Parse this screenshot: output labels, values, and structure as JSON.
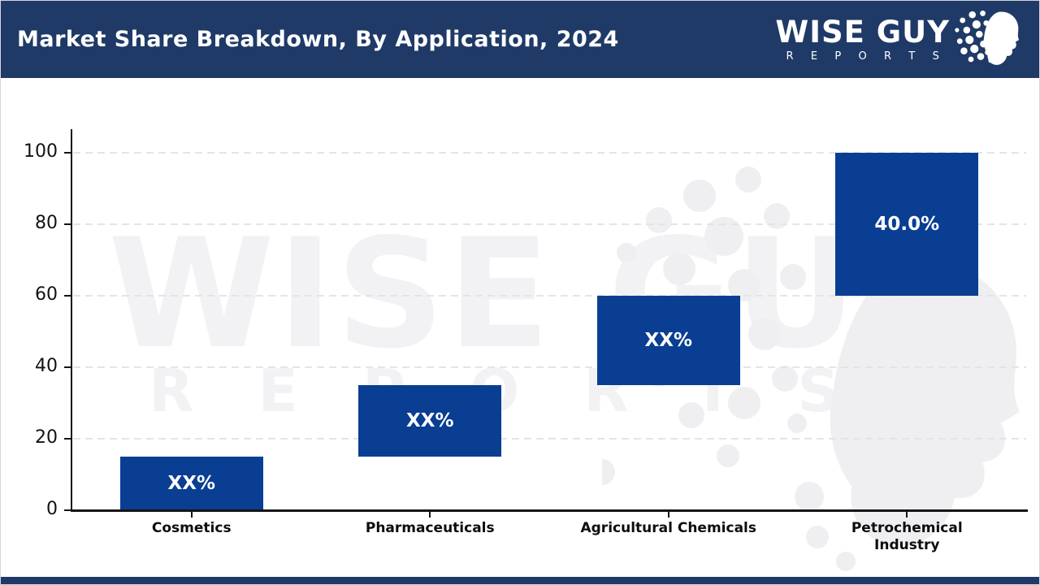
{
  "header": {
    "title": "Market Share Breakdown, By Application, 2024",
    "logo": {
      "line1": "WISE GUY",
      "line2": "REPORTS"
    }
  },
  "watermark": {
    "line1": "WISE GUY",
    "line2": "REPORTS"
  },
  "colors": {
    "header_bg": "#1f3a67",
    "bar_blue": "#0a3e92",
    "grid_gray": "#e4e4e6",
    "watermark_gray": "#f2f2f5",
    "axis_black": "#151515"
  },
  "chart_data": {
    "type": "bar",
    "subtype": "floating-waterfall",
    "title": "Market Share Breakdown, By Application, 2024",
    "xlabel": "",
    "ylabel": "",
    "ylim": [
      0,
      100
    ],
    "yticks": [
      0,
      20,
      40,
      60,
      80,
      100
    ],
    "grid": "horizontal-dashed",
    "legend": "none",
    "categories": [
      "Cosmetics",
      "Pharmaceuticals",
      "Agricultural Chemicals",
      "Petrochemical Industry"
    ],
    "bars": [
      {
        "category": "Cosmetics",
        "base": 0,
        "top": 15,
        "segment_value": 15,
        "label": "XX%"
      },
      {
        "category": "Pharmaceuticals",
        "base": 15,
        "top": 35,
        "segment_value": 20,
        "label": "XX%"
      },
      {
        "category": "Agricultural Chemicals",
        "base": 35,
        "top": 60,
        "segment_value": 25,
        "label": "XX%"
      },
      {
        "category": "Petrochemical Industry",
        "base": 60,
        "top": 100,
        "segment_value": 40,
        "label": "40.0%"
      }
    ],
    "bar_color": "#0a3e92"
  }
}
